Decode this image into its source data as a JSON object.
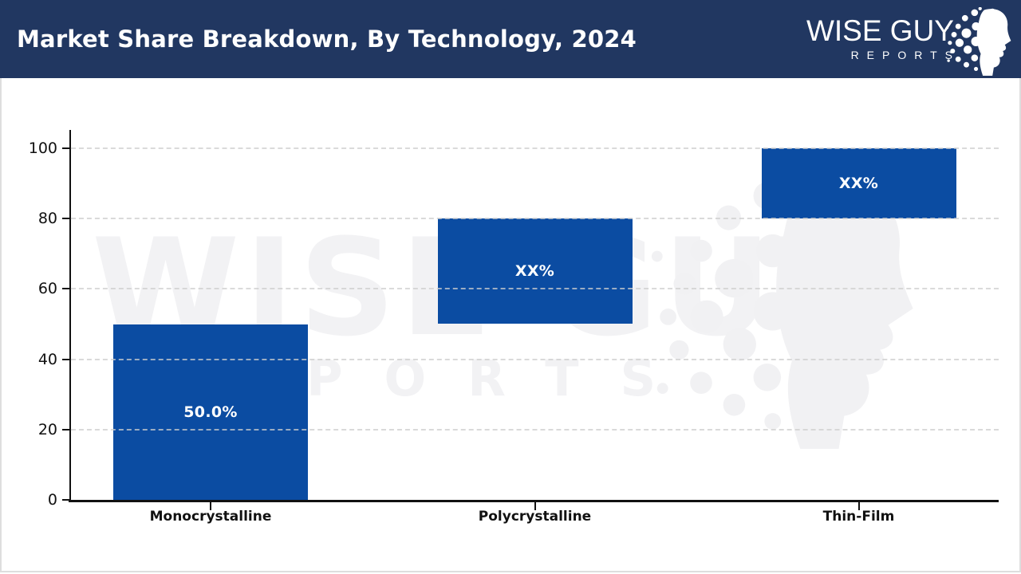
{
  "header": {
    "title": "Market Share Breakdown, By Technology, 2024",
    "brand": {
      "line1": "WISE GUY",
      "line2": "REPORTS"
    }
  },
  "watermark": {
    "line1": "WISE GUY",
    "line2": "REPORTS"
  },
  "colors": {
    "header_bg": "#213761",
    "bar_blue": "#0b4ca2",
    "grid_gray": "#cdcdcd",
    "axis_black": "#111111",
    "watermark_gray": "#f2f2f4"
  },
  "chart_data": {
    "type": "bar",
    "subtype": "waterfall",
    "title": "Market Share Breakdown, By Technology, 2024",
    "categories": [
      "Monocrystalline",
      "Polycrystalline",
      "Thin-Film"
    ],
    "segments": [
      {
        "category": "Monocrystalline",
        "start": 0,
        "end": 50,
        "label": "50.0%"
      },
      {
        "category": "Polycrystalline",
        "start": 50,
        "end": 80,
        "label": "XX%"
      },
      {
        "category": "Thin-Film",
        "start": 80,
        "end": 100,
        "label": "XX%"
      }
    ],
    "ylim": [
      0,
      100
    ],
    "yticks": [
      0,
      20,
      40,
      60,
      80,
      100
    ],
    "grid": "horizontal-dashed",
    "grid_above_bars": true,
    "legend": "none",
    "bar_color": "#0b4ca2"
  }
}
